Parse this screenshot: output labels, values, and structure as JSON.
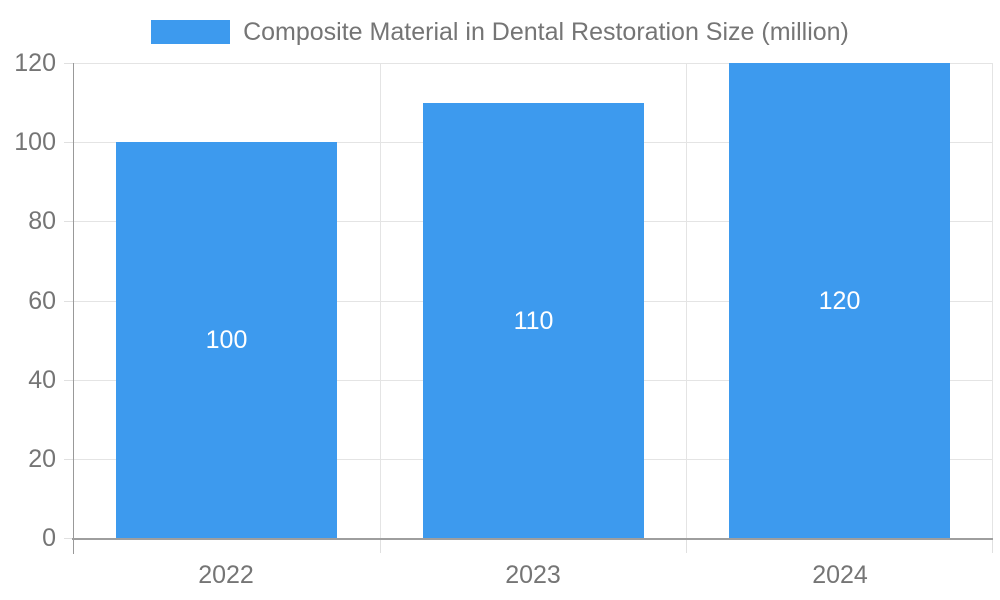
{
  "chart_data": {
    "type": "bar",
    "title": "Composite Material in Dental Restoration Size (million)",
    "categories": [
      "2022",
      "2023",
      "2024"
    ],
    "values": [
      100,
      110,
      120
    ],
    "xlabel": "",
    "ylabel": "",
    "ylim": [
      0,
      120
    ],
    "yticks": [
      0,
      20,
      40,
      60,
      80,
      100,
      120
    ],
    "grid": true,
    "legend_position": "top",
    "bar_color": "#3D9AEE",
    "value_label_color": "#ffffff",
    "axis_text_color": "#757575",
    "gridline_color": "#e4e4e4",
    "axis_line_color": "#999999"
  }
}
